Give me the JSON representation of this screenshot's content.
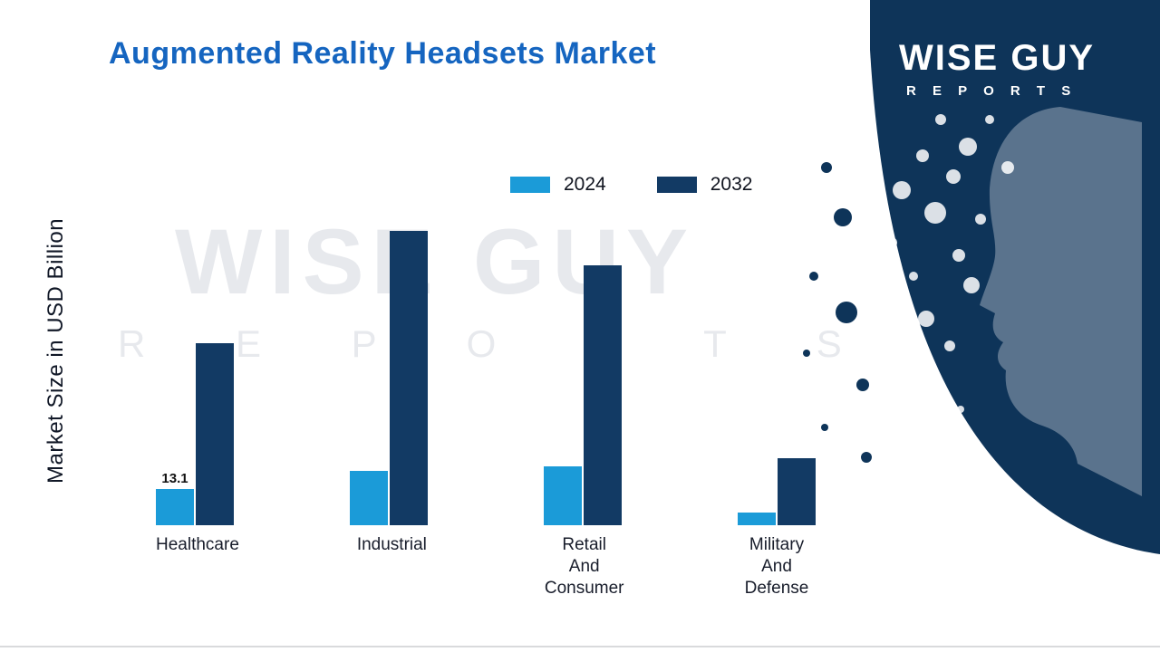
{
  "brand": {
    "name": "WISE GUY",
    "sub": "R E P O R T S"
  },
  "watermark": {
    "line1": "WISE GUY",
    "line2": "R E P O R T S"
  },
  "colors": {
    "title_blue": "#1565c0",
    "bar_2024": "#1b9bd8",
    "bar_2032": "#123a64",
    "corner_navy": "#0e3459",
    "watermark_gray": "#e7e9ed"
  },
  "chart_data": {
    "type": "bar",
    "title": "Augmented Reality Headsets Market",
    "ylabel": "Market Size in USD Billion",
    "categories": [
      "Healthcare",
      "Industrial",
      "Retail And Consumer",
      "Military And Defense"
    ],
    "display_categories": [
      "Healthcare",
      "Industrial",
      "Retail\nAnd\nConsumer",
      "Military\nAnd\nDefense"
    ],
    "ylim": [
      0,
      110
    ],
    "grid": false,
    "legend_position": "top",
    "series": [
      {
        "name": "2024",
        "color": "#1b9bd8",
        "values": [
          13.1,
          19.5,
          21,
          4.5
        ]
      },
      {
        "name": "2032",
        "color": "#123a64",
        "values": [
          65,
          105,
          93,
          24
        ]
      }
    ],
    "bar_labels": [
      [
        "13.1",
        "",
        "",
        ""
      ],
      [
        "",
        "",
        "",
        ""
      ]
    ]
  }
}
